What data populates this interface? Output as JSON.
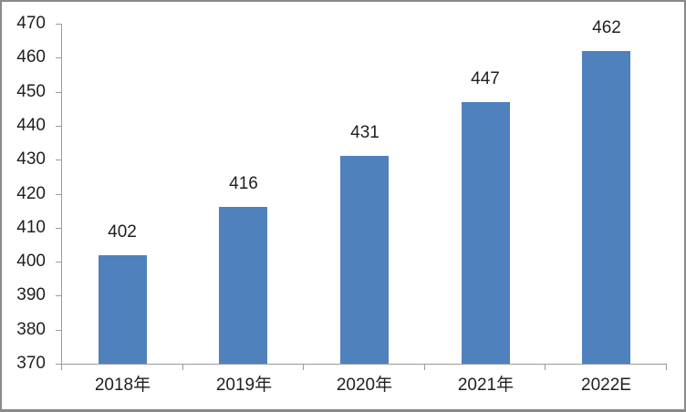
{
  "chart_data": {
    "type": "bar",
    "title": "",
    "xlabel": "",
    "ylabel": "",
    "categories": [
      "2018年",
      "2019年",
      "2020年",
      "2021年",
      "2022E"
    ],
    "values": [
      402,
      416,
      431,
      447,
      462
    ],
    "series": [
      {
        "name": "value",
        "values": [
          402,
          416,
          431,
          447,
          462
        ]
      }
    ],
    "ylim": [
      370,
      470
    ],
    "ytick_step": 10,
    "yticks": [
      370,
      380,
      390,
      400,
      410,
      420,
      430,
      440,
      450,
      460,
      470
    ],
    "grid": false,
    "legend": false,
    "data_labels_shown": true,
    "colors": {
      "bar_fill": "#4F81BD",
      "axis_line": "#9B9B9B",
      "tick_mark": "#9B9B9B",
      "label_text": "#1F1F1F",
      "frame_border": "#898989",
      "background": "#FFFFFF"
    }
  }
}
